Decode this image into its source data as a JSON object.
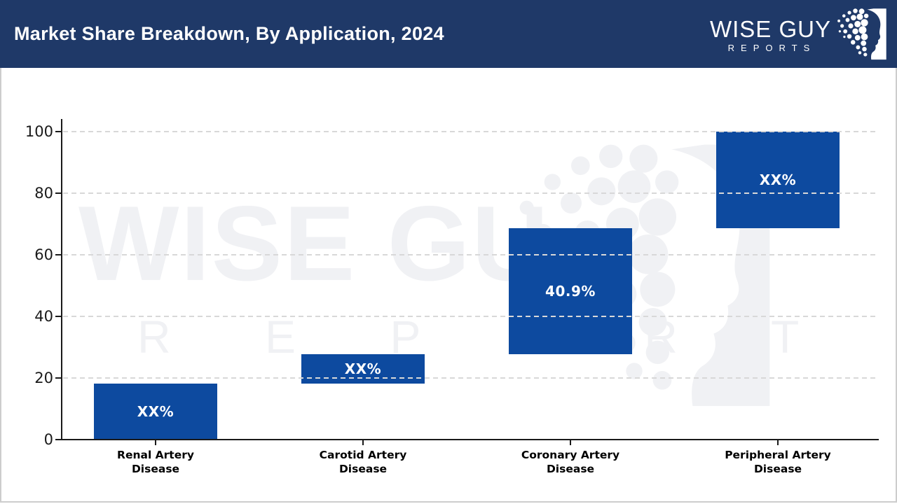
{
  "header": {
    "title": "Market Share Breakdown, By Application, 2024",
    "logo": {
      "brand": "WISE GUY",
      "sub": "REPORTS"
    }
  },
  "watermark": {
    "brand": "WISE GU",
    "sub": "R E P O R T"
  },
  "chart_data": {
    "type": "bar",
    "subtype": "floating-segment-breakdown",
    "title": "Market Share Breakdown, By Application, 2024",
    "categories": [
      "Renal Artery\nDisease",
      "Carotid Artery\nDisease",
      "Coronary Artery\nDisease",
      "Peripheral Artery\nDisease"
    ],
    "segments": [
      {
        "category": "Renal Artery Disease",
        "start": 0,
        "end": 18.2,
        "label": "XX%"
      },
      {
        "category": "Carotid Artery Disease",
        "start": 18.2,
        "end": 27.7,
        "label": "XX%"
      },
      {
        "category": "Coronary Artery Disease",
        "start": 27.7,
        "end": 68.6,
        "label": "40.9%"
      },
      {
        "category": "Peripheral Artery Disease",
        "start": 68.6,
        "end": 100,
        "label": "XX%"
      }
    ],
    "xlabel": "",
    "ylabel": "",
    "ylim": [
      0,
      100
    ],
    "yticks": [
      0,
      20,
      40,
      60,
      80,
      100
    ],
    "grid": "dashed horizontal, drawn above bars",
    "legend": "none",
    "bar_color": "#0d4a9f"
  },
  "colors": {
    "header_bg": "#1f3968",
    "bar": "#0d4a9f",
    "grid": "#d8d8d8",
    "axis": "#1a1a1a",
    "watermark": "#f0f1f4",
    "frame_border": "#cdcdcd"
  }
}
